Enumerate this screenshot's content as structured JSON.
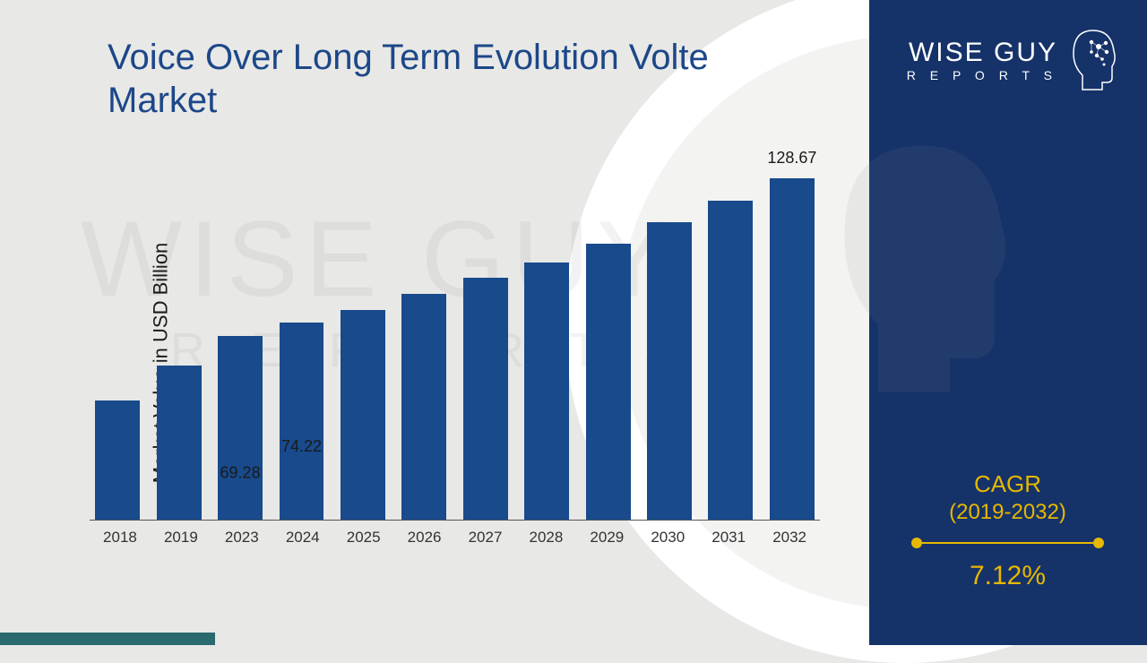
{
  "title": "Voice Over Long Term Evolution Volte Market",
  "y_axis_label": "Market Value in USD Billion",
  "logo": {
    "main": "WISE GUY",
    "sub": "R E P O R T S"
  },
  "watermark": {
    "main": "WISE GUY",
    "sub": "R E P O R T S"
  },
  "cagr": {
    "label": "CAGR",
    "period": "(2019-2032)",
    "value": "7.12%",
    "color": "#e6b800"
  },
  "chart": {
    "type": "bar",
    "bar_color": "#184a8c",
    "background_color": "#e8e8e6",
    "axis_color": "#555555",
    "bar_width": 0.8,
    "ylim": [
      0,
      135
    ],
    "x_tick_fontsize": 17,
    "value_label_fontsize": 18,
    "categories": [
      "2018",
      "2019",
      "2023",
      "2024",
      "2025",
      "2026",
      "2027",
      "2028",
      "2029",
      "2030",
      "2031",
      "2032"
    ],
    "values": [
      45,
      58,
      69.28,
      74.22,
      79,
      85,
      91,
      97,
      104,
      112,
      120,
      128.67
    ],
    "show_labels_for": {
      "2": "69.28",
      "3": "74.22",
      "11": "128.67"
    }
  },
  "colors": {
    "panel": "#153269",
    "title": "#1c4789",
    "bottom_accent": "#2a6a6f",
    "white": "#ffffff"
  }
}
